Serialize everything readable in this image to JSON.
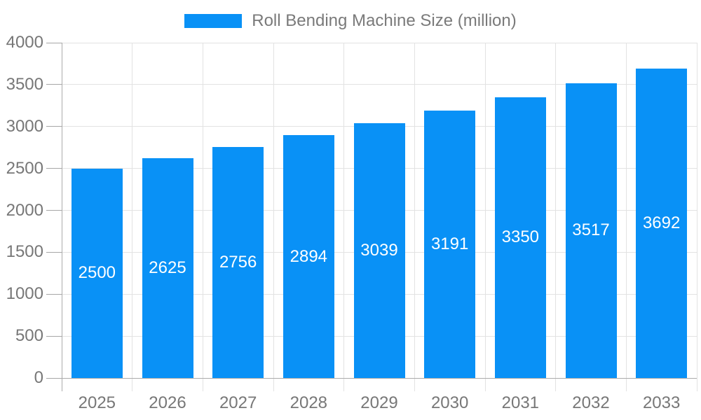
{
  "chart_data": {
    "type": "bar",
    "title": "Roll Bending Machine Size (million)",
    "legend": "Roll Bending Machine Size (million)",
    "categories": [
      "2025",
      "2026",
      "2027",
      "2028",
      "2029",
      "2030",
      "2031",
      "2032",
      "2033"
    ],
    "values": [
      2500,
      2625,
      2756,
      2894,
      3039,
      3191,
      3350,
      3517,
      3692
    ],
    "xlabel": "",
    "ylabel": "",
    "ylim": [
      0,
      4000
    ],
    "ytick_step": 500,
    "y_tick_labels": [
      "0",
      "500",
      "1000",
      "1500",
      "2000",
      "2500",
      "3000",
      "3500",
      "4000"
    ],
    "grid": true,
    "legend_position": "top",
    "bar_color": "#0991f6",
    "value_label_color": "#ffffff",
    "axis_text_color": "#777777",
    "legend_text_color": "#7a7a7a",
    "grid_color": "#e2e2e2",
    "axis_line_color": "#ababab",
    "tick_color": "#a6a6a6"
  }
}
